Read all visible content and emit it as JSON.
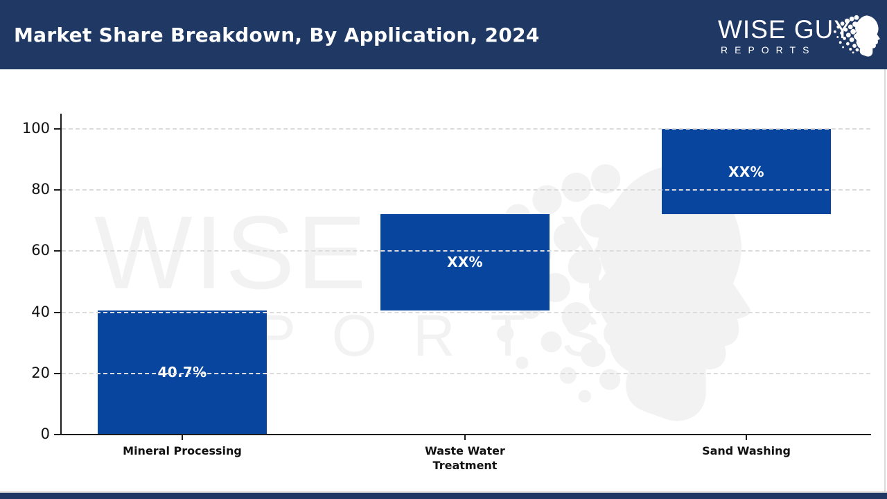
{
  "header": {
    "title": "Market Share Breakdown, By Application, 2024",
    "logo": {
      "line1": "WISE GUY",
      "line2": "REPORTS"
    }
  },
  "watermark": {
    "line1": "WISE GUY",
    "line2": "REPORTS"
  },
  "chart_data": {
    "type": "bar",
    "subtype": "waterfall-floating-bars",
    "title": "Market Share Breakdown, By Application, 2024",
    "categories": [
      "Mineral Processing",
      "Waste Water\nTreatment",
      "Sand Washing"
    ],
    "segments": [
      {
        "category": "Mineral Processing",
        "start": 0,
        "end": 40.7,
        "label": "40.7%"
      },
      {
        "category": "Waste Water Treatment",
        "start": 40.7,
        "end": 72,
        "label": "XX%"
      },
      {
        "category": "Sand Washing",
        "start": 72,
        "end": 100,
        "label": "XX%"
      }
    ],
    "xlabel": "",
    "ylabel": "",
    "ylim": [
      0,
      100
    ],
    "yticks": [
      0,
      20,
      40,
      60,
      80,
      100
    ],
    "grid": "horizontal dashed, drawn over bars",
    "legend": "none",
    "bar_color": "#07459e",
    "bar_label_color": "#ffffff"
  },
  "colors": {
    "header_bg": "#1f3864",
    "footer_bg": "#1f3864",
    "bar": "#07459e",
    "watermark": "#f2f2f2",
    "gridline": "#dcdcdc",
    "axis": "#1c1c1c",
    "tick_text": "#111111"
  }
}
